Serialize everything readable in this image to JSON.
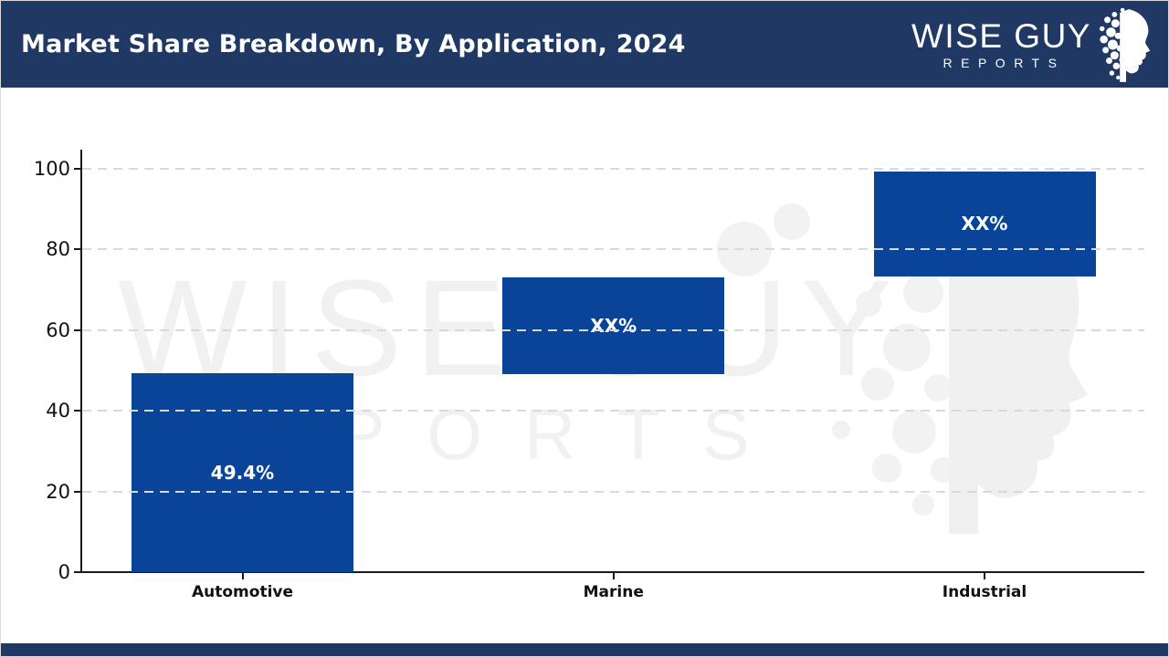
{
  "header": {
    "title": "Market Share Breakdown, By Application, 2024",
    "brand": {
      "line1": "WISE GUY",
      "line2": "REPORTS"
    }
  },
  "watermark": {
    "line1": "WISE GUY",
    "line2": "REPORTS"
  },
  "chart_data": {
    "type": "bar",
    "subtype": "floating-waterfall",
    "title": "Market Share Breakdown, By Application, 2024",
    "categories": [
      "Automotive",
      "Marine",
      "Industrial"
    ],
    "series": [
      {
        "name": "Market Share %",
        "segments": [
          {
            "category": "Automotive",
            "start": 0,
            "end": 49.4,
            "label": "49.4%"
          },
          {
            "category": "Marine",
            "start": 49.1,
            "end": 73.1,
            "label": "XX%"
          },
          {
            "category": "Industrial",
            "start": 73.3,
            "end": 99.4,
            "label": "XX%"
          }
        ]
      }
    ],
    "xlabel": "",
    "ylabel": "",
    "yticks": [
      0,
      20,
      40,
      60,
      80,
      100
    ],
    "ylim": [
      0,
      105
    ],
    "grid": "horizontal-dashed",
    "legend": "none",
    "bar_color": "#0a4499",
    "bar_label_color": "#ffffff"
  },
  "colors": {
    "header_bg": "#203864",
    "footer_bg": "#203864",
    "bar": "#0a4499",
    "grid": "#d9d9d9",
    "axis": "#1a1a1a",
    "watermark": "#f1f1f1",
    "page_bg": "#ffffff"
  }
}
